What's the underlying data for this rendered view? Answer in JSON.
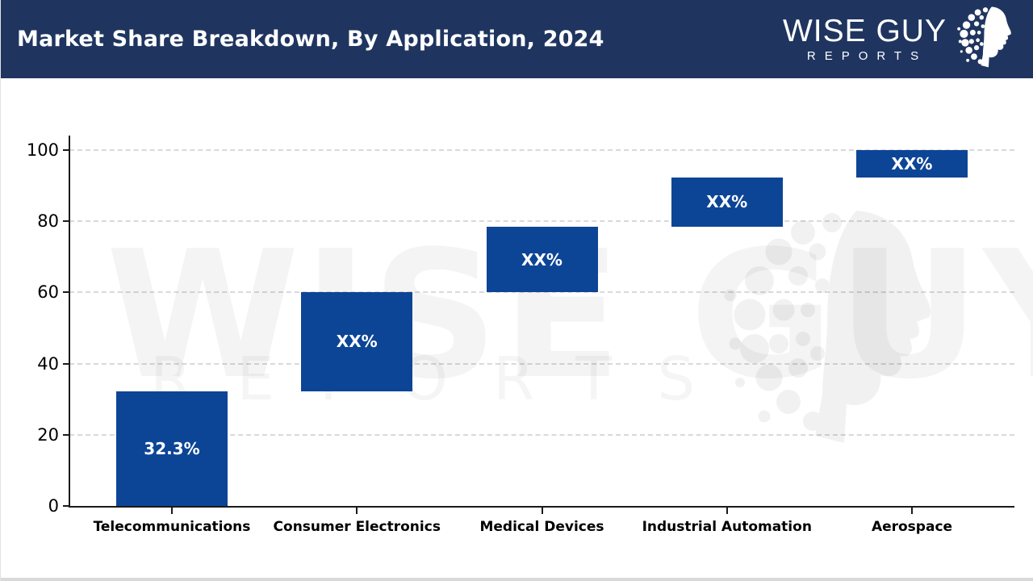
{
  "header": {
    "title": "Market Share Breakdown, By Application, 2024",
    "bg_color": "#1f3560",
    "logo": {
      "line1": "WISE GUY",
      "line2": "REPORTS"
    }
  },
  "watermark": {
    "line1": "WISE GUY",
    "line2": "REPORTS"
  },
  "chart_data": {
    "type": "bar",
    "subtype": "waterfall",
    "title": "Market Share Breakdown, By Application, 2024",
    "categories": [
      "Telecommunications",
      "Consumer Electronics",
      "Medical Devices",
      "Industrial Automation",
      "Aerospace"
    ],
    "segments": [
      {
        "category": "Telecommunications",
        "start": 0,
        "end": 32.3,
        "label": "32.3%"
      },
      {
        "category": "Consumer Electronics",
        "start": 32.3,
        "end": 60.0,
        "label": "XX%"
      },
      {
        "category": "Medical Devices",
        "start": 60.0,
        "end": 78.5,
        "label": "XX%"
      },
      {
        "category": "Industrial Automation",
        "start": 78.5,
        "end": 92.3,
        "label": "XX%"
      },
      {
        "category": "Aerospace",
        "start": 92.3,
        "end": 100.0,
        "label": "XX%"
      }
    ],
    "y_ticks": [
      0,
      20,
      40,
      60,
      80,
      100
    ],
    "ylim": [
      0,
      105
    ],
    "xlabel": "",
    "ylabel": "",
    "grid": "horizontal-dashed",
    "legend": "none",
    "bar_color": "#0d4596",
    "bar_label_color": "#ffffff",
    "gridline_color": "#d9d9d9",
    "axis_color": "#1a1a1a"
  }
}
